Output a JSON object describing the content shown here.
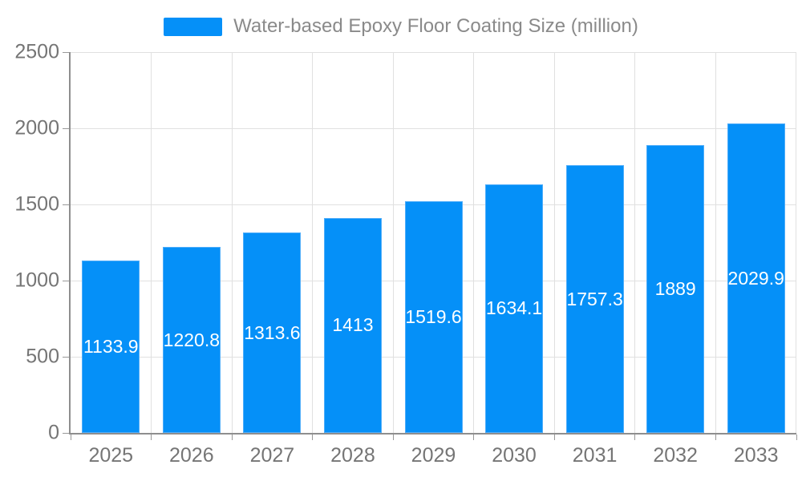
{
  "chart_data": {
    "type": "bar",
    "title": "Water-based Epoxy Floor Coating Size (million)",
    "categories": [
      "2025",
      "2026",
      "2027",
      "2028",
      "2029",
      "2030",
      "2031",
      "2032",
      "2033"
    ],
    "values": [
      1133.9,
      1220.8,
      1313.6,
      1413,
      1519.6,
      1634.1,
      1757.3,
      1889,
      2029.9
    ],
    "xlabel": "",
    "ylabel": "",
    "ylim": [
      0,
      2500
    ],
    "yticks": [
      0,
      500,
      1000,
      1500,
      2000,
      2500
    ],
    "grid": true,
    "legend_position": "top",
    "value_labels_inside_bars": true,
    "colors": {
      "bar": "#0590f8",
      "bar_border": "#4fadfa",
      "grid": "#e0e0e0",
      "axis": "#8e8e8e",
      "tick_mark": "#999999",
      "tick_text": "#757575",
      "value_text": "#ffffff",
      "legend_text": "#8a8a8a"
    }
  }
}
